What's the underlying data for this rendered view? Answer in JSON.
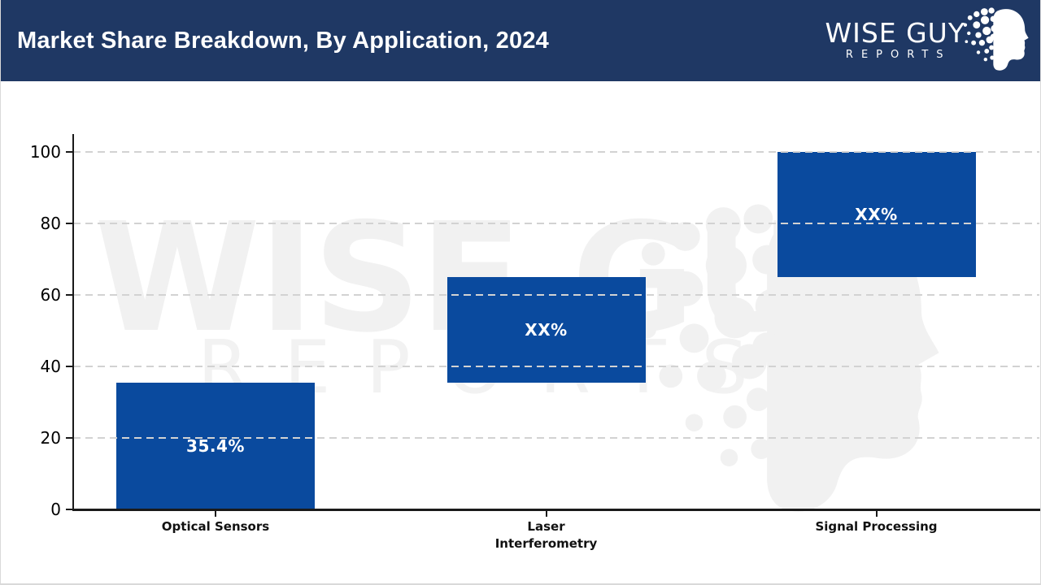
{
  "header": {
    "title": "Market Share Breakdown, By Application, 2024",
    "background_color": "#1f3864",
    "logo": {
      "line1": "WISE GUY",
      "line2": "REPORTS",
      "icon": "dotted-head-profile-icon"
    }
  },
  "watermark": {
    "line1": "WISE GUY",
    "line2": "REPORTS",
    "icon": "dotted-head-profile-icon",
    "color": "#f1f1f1"
  },
  "chart_data": {
    "type": "bar",
    "subtype": "waterfall",
    "title": "Market Share Breakdown, By Application, 2024",
    "xlabel": "",
    "ylabel": "",
    "categories": [
      "Optical Sensors",
      "Laser Interferometry",
      "Signal Processing"
    ],
    "bars": [
      {
        "category": "Optical Sensors",
        "category_lines": [
          "Optical Sensors"
        ],
        "start": 0,
        "end": 35.4,
        "label": "35.4%"
      },
      {
        "category": "Laser Interferometry",
        "category_lines": [
          "Laser",
          "Interferometry"
        ],
        "start": 35.4,
        "end": 65,
        "label": "XX%"
      },
      {
        "category": "Signal Processing",
        "category_lines": [
          "Signal Processing"
        ],
        "start": 65,
        "end": 100,
        "label": "XX%"
      }
    ],
    "yticks": [
      0,
      20,
      40,
      60,
      80,
      100
    ],
    "ylim": [
      0,
      105
    ],
    "grid": "horizontal dashed",
    "legend": "none",
    "bar_color": "#0a4a9e",
    "bar_label_color": "#ffffff"
  }
}
